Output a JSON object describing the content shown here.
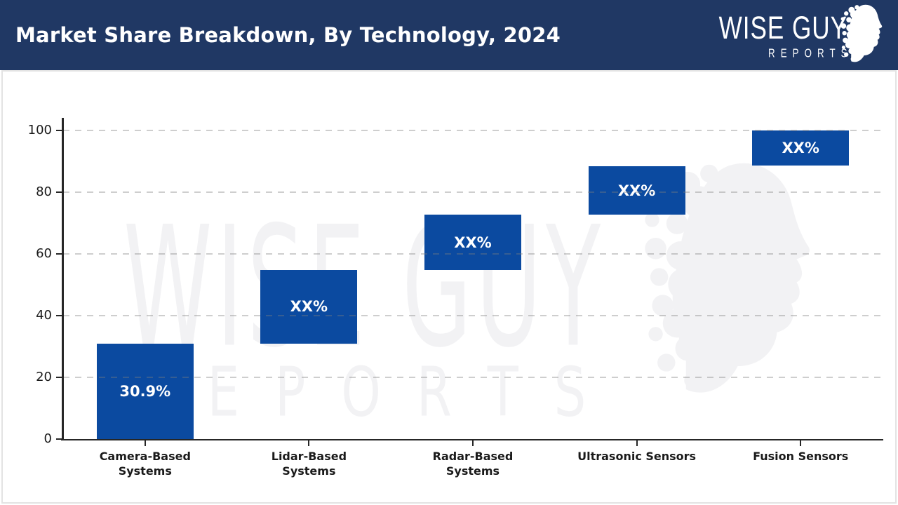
{
  "header": {
    "title": "Market Share Breakdown, By Technology, 2024",
    "brand": {
      "line1": "WISE GUY",
      "line2": "REPORTS"
    }
  },
  "watermark": {
    "line1": "WISE GUY",
    "line2": "R E P O R T S"
  },
  "colors": {
    "header_bg": "#203864",
    "bar": "#0B4AA0",
    "axis": "#262626",
    "gridline": "#DCDCDC",
    "bar_label": "#FFFFFF",
    "watermark": "#F2F2F4"
  },
  "chart_data": {
    "type": "bar",
    "subtype": "waterfall",
    "title": "Market Share Breakdown, By Technology, 2024",
    "xlabel": "",
    "ylabel": "",
    "categories": [
      "Camera-Based\nSystems",
      "Lidar-Based\nSystems",
      "Radar-Based\nSystems",
      "Ultrasonic Sensors",
      "Fusion Sensors"
    ],
    "segments": [
      {
        "category": "Camera-Based Systems",
        "start": 0,
        "end": 30.9,
        "label": "30.9%"
      },
      {
        "category": "Lidar-Based Systems",
        "start": 30.9,
        "end": 54.8,
        "label": "XX%"
      },
      {
        "category": "Radar-Based Systems",
        "start": 54.8,
        "end": 72.7,
        "label": "XX%"
      },
      {
        "category": "Ultrasonic Sensors",
        "start": 72.7,
        "end": 88.4,
        "label": "XX%"
      },
      {
        "category": "Fusion Sensors",
        "start": 88.6,
        "end": 100,
        "label": "XX%"
      }
    ],
    "ylim": [
      0,
      104
    ],
    "y_ticks": [
      0,
      20,
      40,
      60,
      80,
      100
    ],
    "grid": "dashed-horizontal, drawn over bars",
    "legend": "none"
  }
}
